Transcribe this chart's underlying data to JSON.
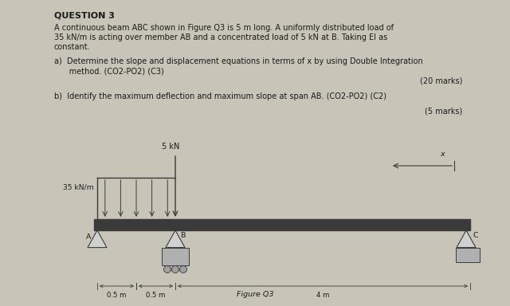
{
  "bg_color": "#c8c4b8",
  "text_color": "#1a1a1a",
  "title": "QUESTION 3",
  "paragraph1": "A continuous beam ABC shown in Figure Q3 is 5 m long. A uniformly distributed load of",
  "paragraph2": "35 kN/m is acting over member AB and a concentrated load of 5 kN at B. Taking EI as",
  "paragraph3": "constant.",
  "part_a1": "a)  Determine the slope and displacement equations in terms of x by using Double Integration",
  "part_a2": "      method. (CO2-PO2) (C3)",
  "marks_a": "(20 marks)",
  "part_b": "b)  Identify the maximum deflection and maximum slope at span AB. (CO2-PO2) (C2)",
  "marks_b": "(5 marks)",
  "figure_caption": "Figure Q3",
  "beam_color": "#3a3a3a",
  "support_color": "#888888",
  "udl_label": "35 kN/m",
  "pl_label": "5 kN",
  "dim_left_label": "0.5 m",
  "dim_mid_label": "0.5 m",
  "dim_right_label": "4 m",
  "x_label": "x"
}
